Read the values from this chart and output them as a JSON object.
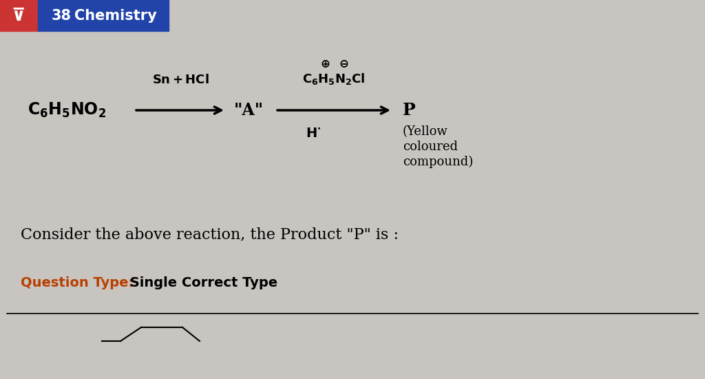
{
  "bg_color": "#c8c4c0",
  "header_red_color": "#cc3333",
  "header_blue_color": "#2244aa",
  "header_number": "38",
  "header_subject": "Chemistry",
  "question_text": "Consider the above reaction, the Product \"P\" is :",
  "question_type_label": "Question Type:",
  "question_type_value": " Single Correct Type",
  "question_type_color": "#b84000",
  "figsize": [
    10.24,
    5.5
  ],
  "dpi": 100
}
